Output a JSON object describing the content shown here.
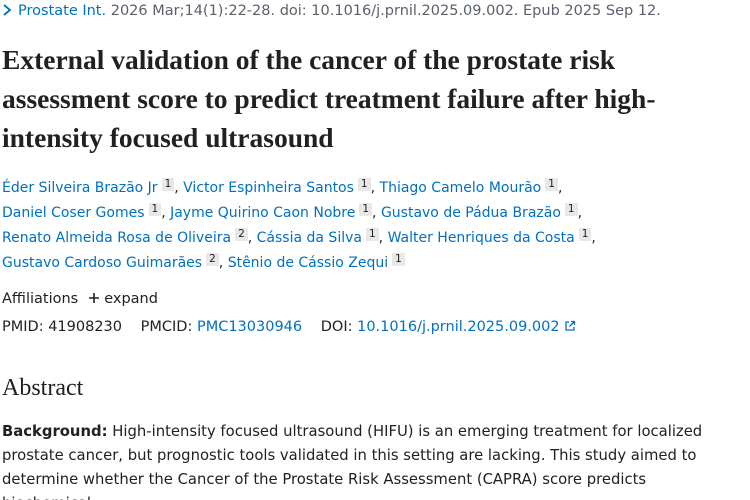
{
  "citation": {
    "journal": "Prostate Int.",
    "details": "2026 Mar;14(1):22-28. doi: 10.1016/j.prnil.2025.09.002. Epub 2025 Sep 12."
  },
  "title": "External validation of the cancer of the prostate risk assessment score to predict treatment failure after high-intensity focused ultrasound",
  "separator": ",",
  "authors": [
    {
      "name": "Éder Silveira Brazão Jr",
      "aff": "1"
    },
    {
      "name": "Victor Espinheira Santos",
      "aff": "1"
    },
    {
      "name": "Thiago Camelo Mourão",
      "aff": "1"
    },
    {
      "name": "Daniel Coser Gomes",
      "aff": "1"
    },
    {
      "name": "Jayme Quirino Caon Nobre",
      "aff": "1"
    },
    {
      "name": "Gustavo de Pádua Brazão",
      "aff": "1"
    },
    {
      "name": "Renato Almeida Rosa de Oliveira",
      "aff": "2"
    },
    {
      "name": "Cássia da Silva",
      "aff": "1"
    },
    {
      "name": "Walter Henriques da Costa",
      "aff": "1"
    },
    {
      "name": "Gustavo Cardoso Guimarães",
      "aff": "2"
    },
    {
      "name": "Stênio de Cássio Zequi",
      "aff": "1"
    }
  ],
  "affiliations": {
    "label": "Affiliations",
    "toggle": "expand"
  },
  "ids": {
    "pmid_label": "PMID:",
    "pmid": "41908230",
    "pmcid_label": "PMCID:",
    "pmcid": "PMC13030946",
    "doi_label": "DOI:",
    "doi": "10.1016/j.prnil.2025.09.002"
  },
  "abstract": {
    "heading": "Abstract",
    "label": "Background:",
    "text": "High-intensity focused ultrasound (HIFU) is an emerging treatment for localized prostate cancer, but prognostic tools validated in this setting are lacking. This study aimed to determine whether the Cancer of the Prostate Risk Assessment (CAPRA) score predicts biochemical"
  }
}
